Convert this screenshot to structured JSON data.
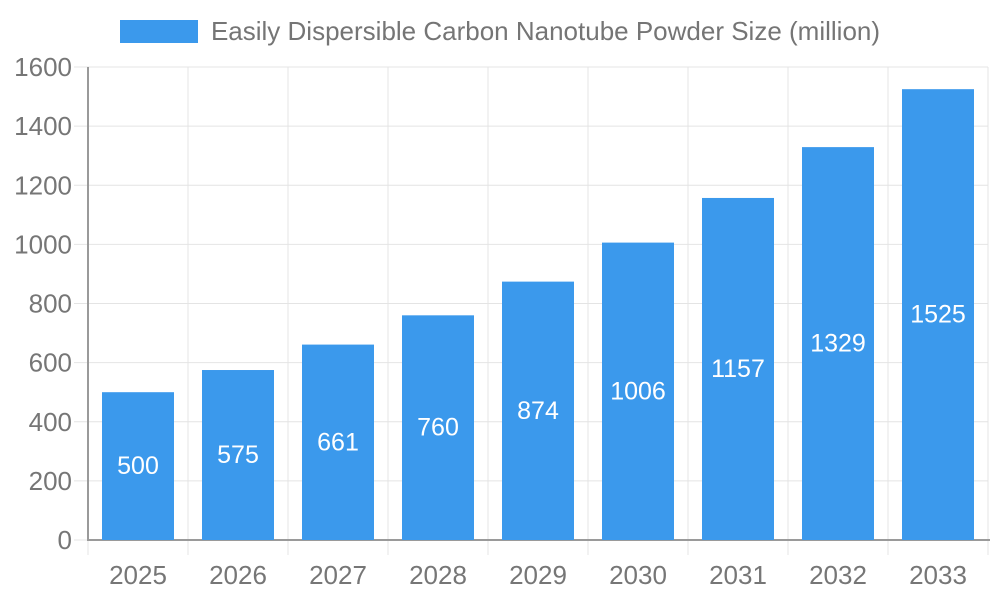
{
  "chart_data": {
    "type": "bar",
    "title": "Easily Dispersible Carbon Nanotube Powder Size (million)",
    "categories": [
      "2025",
      "2026",
      "2027",
      "2028",
      "2029",
      "2030",
      "2031",
      "2032",
      "2033"
    ],
    "values": [
      500,
      575,
      661,
      760,
      874,
      1006,
      1157,
      1329,
      1525
    ],
    "xlabel": "",
    "ylabel": "",
    "ylim": [
      0,
      1600
    ],
    "ytick_step": 200,
    "grid": true,
    "legend_position": "top",
    "bar_value_labels_visible": true,
    "colors": {
      "bar": "#3B99EC",
      "bar_label": "#FFFFFF",
      "axis_line": "#9A9A9A",
      "grid_line": "#E4E4E4",
      "tick_label": "#767676",
      "title": "#757575",
      "background": "#FFFFFF"
    }
  }
}
